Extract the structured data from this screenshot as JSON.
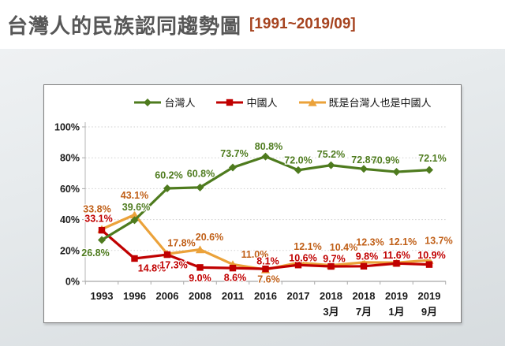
{
  "page": {
    "title": "台灣人的民族認同趨勢圖",
    "title_suffix": "[1991~2019/09]",
    "title_color": "#575757",
    "title_suffix_color": "#A6431F"
  },
  "chart_data": {
    "type": "line",
    "title": "台灣人的民族認同趨勢圖 [1991~2019/09]",
    "xlabel": "",
    "ylabel": "",
    "ylim": [
      0,
      100
    ],
    "grid": true,
    "legend_position": "top",
    "y_ticks": [
      {
        "value": 100,
        "label": "100%"
      },
      {
        "value": 80,
        "label": "80%"
      },
      {
        "value": 60,
        "label": "60%"
      },
      {
        "value": 40,
        "label": "40%"
      },
      {
        "value": 20,
        "label": "20%"
      },
      {
        "value": 0,
        "label": "0%"
      }
    ],
    "x_ticks": [
      {
        "l1": "1993",
        "l2": ""
      },
      {
        "l1": "1996",
        "l2": ""
      },
      {
        "l1": "2006",
        "l2": ""
      },
      {
        "l1": "2008",
        "l2": ""
      },
      {
        "l1": "2011",
        "l2": ""
      },
      {
        "l1": "2016",
        "l2": ""
      },
      {
        "l1": "2017",
        "l2": ""
      },
      {
        "l1": "2018",
        "l2": "3月"
      },
      {
        "l1": "2018",
        "l2": "7月"
      },
      {
        "l1": "2019",
        "l2": "1月"
      },
      {
        "l1": "2019",
        "l2": "9月"
      }
    ],
    "series": [
      {
        "name": "台灣人",
        "marker": "diamond",
        "line_color": "#4E7B1E",
        "label_color": "#4E7B1E",
        "values": [
          26.8,
          39.6,
          60.2,
          60.8,
          73.7,
          80.8,
          72.0,
          75.2,
          72.8,
          70.9,
          72.1
        ]
      },
      {
        "name": "中國人",
        "marker": "square",
        "line_color": "#C00000",
        "label_color": "#C00000",
        "values": [
          33.1,
          14.8,
          17.3,
          9.0,
          8.6,
          8.1,
          10.6,
          9.7,
          9.8,
          11.6,
          10.9
        ]
      },
      {
        "name": "既是台灣人也是中國人",
        "marker": "triangle",
        "line_color": "#EBA23A",
        "label_color": "#C05F17",
        "values": [
          33.8,
          43.1,
          17.8,
          20.6,
          11.0,
          7.6,
          12.1,
          10.4,
          12.3,
          12.1,
          13.7
        ]
      }
    ]
  }
}
